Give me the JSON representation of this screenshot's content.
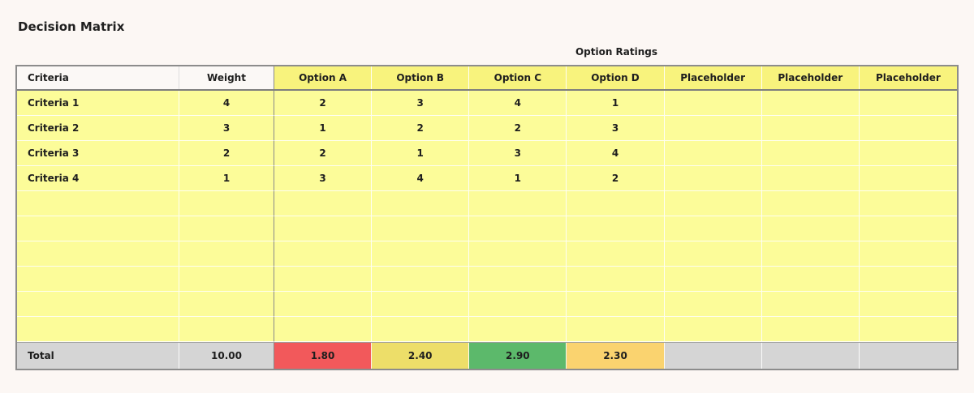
{
  "page": {
    "title": "Decision Matrix",
    "section_label": "Option Ratings",
    "background_color": "#FCF7F4"
  },
  "colors": {
    "cell_yellow": "#FCFC99",
    "header_yellow": "#F8F37D",
    "header_white": "#FBF8F6",
    "total_gray": "#D5D5D5",
    "grid_border": "#8C8C8C",
    "text": "#1E1E1E"
  },
  "table": {
    "headers": [
      "Criteria",
      "Weight",
      "Option A",
      "Option B",
      "Option C",
      "Option D",
      "Placeholder",
      "Placeholder",
      "Placeholder"
    ],
    "rows": [
      {
        "criteria": "Criteria 1",
        "weight": "4",
        "ratings": [
          "2",
          "3",
          "4",
          "1"
        ]
      },
      {
        "criteria": "Criteria 2",
        "weight": "3",
        "ratings": [
          "1",
          "2",
          "2",
          "3"
        ]
      },
      {
        "criteria": "Criteria 3",
        "weight": "2",
        "ratings": [
          "2",
          "1",
          "3",
          "4"
        ]
      },
      {
        "criteria": "Criteria 4",
        "weight": "1",
        "ratings": [
          "3",
          "4",
          "1",
          "2"
        ]
      }
    ],
    "empty_row_count": 6,
    "total": {
      "label": "Total",
      "weight": "10.00",
      "values": [
        {
          "text": "1.80",
          "color": "#F2595B"
        },
        {
          "text": "2.40",
          "color": "#EDDE69"
        },
        {
          "text": "2.90",
          "color": "#5CB96B"
        },
        {
          "text": "2.30",
          "color": "#FAD36F"
        }
      ]
    }
  }
}
